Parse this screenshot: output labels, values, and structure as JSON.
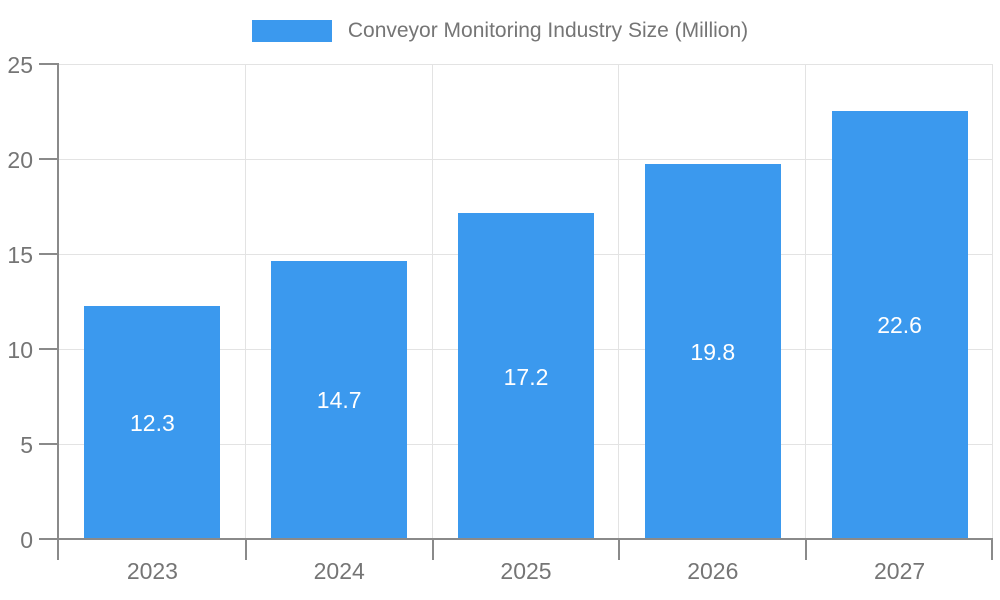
{
  "chart_data": {
    "type": "bar",
    "title": "Conveyor Monitoring Industry Size (Million)",
    "legend": [
      "Conveyor Monitoring Industry Size (Million)"
    ],
    "legend_position": "top",
    "categories": [
      "2023",
      "2024",
      "2025",
      "2026",
      "2027"
    ],
    "series": [
      {
        "name": "Conveyor Monitoring Industry Size (Million)",
        "values": [
          12.3,
          14.7,
          17.2,
          19.8,
          22.6
        ]
      }
    ],
    "value_labels": [
      "12.3",
      "14.7",
      "17.2",
      "19.8",
      "22.6"
    ],
    "xlabel": "",
    "ylabel": "",
    "ylim": [
      0,
      25
    ],
    "yticks": [
      0,
      5,
      10,
      15,
      20,
      25
    ],
    "ytick_labels": [
      "0",
      "5",
      "10",
      "15",
      "20",
      "25"
    ],
    "grid": true,
    "colors": {
      "bar": "#3b99ee",
      "axis": "#8a8a8a",
      "grid": "#e3e3e3",
      "tick_label": "#757575",
      "legend_text": "#757575",
      "value_label": "#ffffff",
      "background": "#ffffff"
    }
  }
}
